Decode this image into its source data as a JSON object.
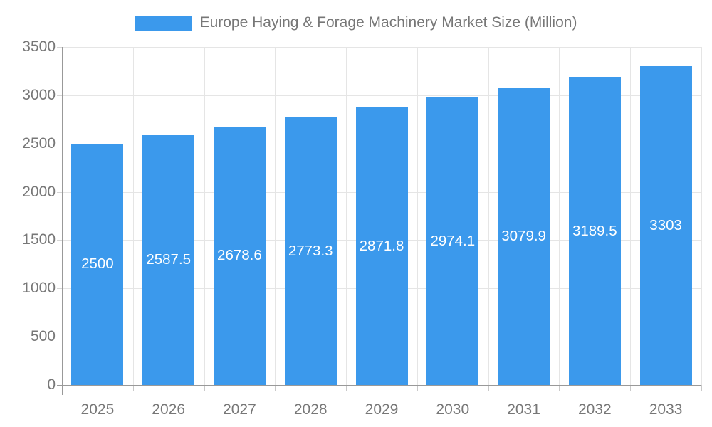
{
  "legend": {
    "label": "Europe Haying & Forage Machinery Market Size (Million)"
  },
  "chart_data": {
    "type": "bar",
    "title": "Europe Haying & Forage Machinery Market Size (Million)",
    "categories": [
      "2025",
      "2026",
      "2027",
      "2028",
      "2029",
      "2030",
      "2031",
      "2032",
      "2033"
    ],
    "values": [
      2500,
      2587.5,
      2678.6,
      2773.3,
      2871.8,
      2974.1,
      3079.9,
      3189.5,
      3303
    ],
    "value_labels": [
      "2500",
      "2587.5",
      "2678.6",
      "2773.3",
      "2871.8",
      "2974.1",
      "3079.9",
      "3189.5",
      "3303"
    ],
    "xlabel": "",
    "ylabel": "",
    "ylim": [
      0,
      3500
    ],
    "yticks": [
      0,
      500,
      1000,
      1500,
      2000,
      2500,
      3000,
      3500
    ],
    "grid": true,
    "legend_position": "top-center",
    "value_label_position": "bar-middle",
    "colors": {
      "bar": "#3b99ec",
      "axis": "#999999",
      "grid": "#e5e5e5",
      "tick": "#c9c9c9",
      "text": "#777777",
      "bar_label": "#ffffff",
      "background": "#ffffff"
    }
  }
}
